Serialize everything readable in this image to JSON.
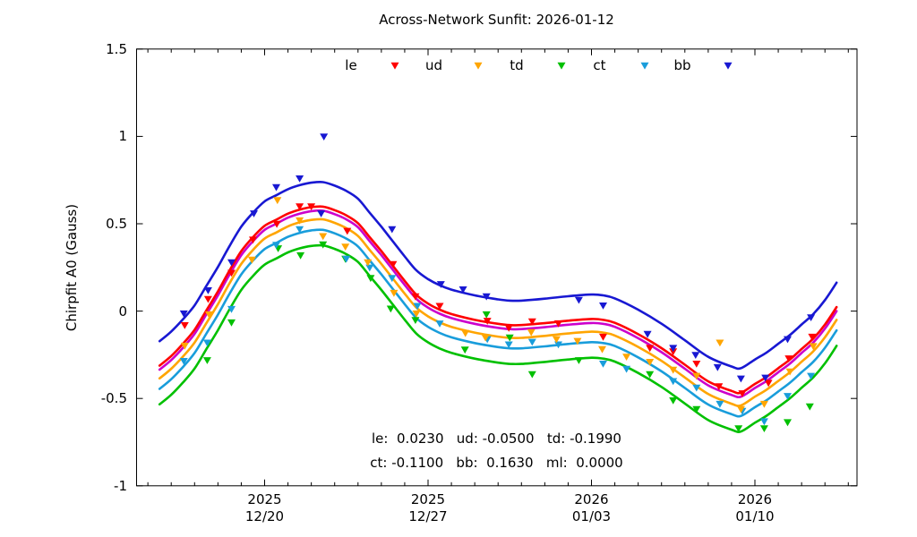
{
  "title": "Across-Network Sunfit: 2026-01-12",
  "axes": {
    "ylabel": "Chirpfit A0 (Gauss)",
    "y_ticks": [
      "1.5",
      "1",
      "0.5",
      "0",
      "-0.5",
      "-1"
    ],
    "y_tick_values": [
      1.5,
      1.0,
      0.5,
      0.0,
      -0.5,
      -1.0
    ],
    "x_major_ticks": [
      {
        "day": 0,
        "year": "2025",
        "date": "12/20"
      },
      {
        "day": 7,
        "year": "2025",
        "date": "12/27"
      },
      {
        "day": 14,
        "year": "2026",
        "date": "01/03"
      },
      {
        "day": 21,
        "year": "2026",
        "date": "01/10"
      }
    ],
    "x_minor_tick_first_day": -5,
    "x_minor_tick_last_day": 25
  },
  "legend": {
    "entries": [
      "le",
      "ud",
      "td",
      "ct",
      "bb"
    ]
  },
  "annotation": {
    "line1": "le:  0.0230   ud: -0.0500   td: -0.1990",
    "line2": "ct: -0.1100   bb:  0.1630   ml:  0.0000"
  },
  "chart_data": {
    "type": "scatter",
    "has_fit_lines": true,
    "title": "Across-Network Sunfit: 2026-01-12",
    "xlabel": "",
    "ylabel": "Chirpfit A0 (Gauss)",
    "ylim": [
      -1.0,
      1.5
    ],
    "x_unit": "days relative to 2025-12-20 (tick labels show dates)",
    "x_range_days": [
      -5.5,
      25.4
    ],
    "grid": false,
    "legend_position": "top-center-inside",
    "base_curve_days_values": [
      [
        -4.5,
        -0.335
      ],
      [
        -4,
        -0.28
      ],
      [
        -3.5,
        -0.21
      ],
      [
        -3,
        -0.13
      ],
      [
        -2.5,
        -0.02
      ],
      [
        -2,
        0.09
      ],
      [
        -1.5,
        0.21
      ],
      [
        -1,
        0.32
      ],
      [
        -0.5,
        0.4
      ],
      [
        0,
        0.465
      ],
      [
        0.5,
        0.5
      ],
      [
        1,
        0.535
      ],
      [
        1.5,
        0.558
      ],
      [
        2,
        0.572
      ],
      [
        2.5,
        0.575
      ],
      [
        3,
        0.555
      ],
      [
        3.5,
        0.525
      ],
      [
        4,
        0.48
      ],
      [
        4.5,
        0.4
      ],
      [
        5,
        0.32
      ],
      [
        5.5,
        0.235
      ],
      [
        6,
        0.15
      ],
      [
        6.5,
        0.07
      ],
      [
        7,
        0.02
      ],
      [
        7.5,
        -0.015
      ],
      [
        8,
        -0.04
      ],
      [
        9,
        -0.073
      ],
      [
        10,
        -0.096
      ],
      [
        10.5,
        -0.103
      ],
      [
        11,
        -0.103
      ],
      [
        12,
        -0.092
      ],
      [
        13,
        -0.078
      ],
      [
        14,
        -0.068
      ],
      [
        14.5,
        -0.073
      ],
      [
        15,
        -0.09
      ],
      [
        16,
        -0.155
      ],
      [
        17,
        -0.235
      ],
      [
        18,
        -0.33
      ],
      [
        19,
        -0.425
      ],
      [
        20,
        -0.48
      ],
      [
        20.4,
        -0.49
      ],
      [
        21,
        -0.44
      ],
      [
        21.5,
        -0.4
      ],
      [
        22,
        -0.35
      ],
      [
        22.5,
        -0.3
      ],
      [
        23,
        -0.24
      ],
      [
        23.5,
        -0.18
      ],
      [
        24,
        -0.1
      ],
      [
        24.5,
        0.0
      ]
    ],
    "series": [
      {
        "name": "le",
        "color": "#ff0000",
        "fit_offset": 0.023,
        "marker": "triangle-down",
        "points": [
          [
            -3.42,
            -0.08
          ],
          [
            -2.42,
            0.07
          ],
          [
            -1.42,
            0.22
          ],
          [
            -0.5,
            0.41
          ],
          [
            0.52,
            0.5
          ],
          [
            1.5,
            0.6
          ],
          [
            2.0,
            0.6
          ],
          [
            3.54,
            0.46
          ],
          [
            5.5,
            0.27
          ],
          [
            6.46,
            0.085
          ],
          [
            7.5,
            0.03
          ],
          [
            9.54,
            -0.055
          ],
          [
            10.46,
            -0.095
          ],
          [
            11.46,
            -0.058
          ],
          [
            12.58,
            -0.069
          ],
          [
            14.5,
            -0.146
          ],
          [
            16.5,
            -0.21
          ],
          [
            17.5,
            -0.23
          ],
          [
            18.5,
            -0.3
          ],
          [
            19.46,
            -0.43
          ],
          [
            20.46,
            -0.47
          ],
          [
            21.58,
            -0.41
          ],
          [
            22.45,
            -0.27
          ],
          [
            23.45,
            -0.146
          ]
        ]
      },
      {
        "name": "ud",
        "color": "#ffa500",
        "fit_offset": -0.05,
        "marker": "triangle-down",
        "points": [
          [
            -3.42,
            -0.197
          ],
          [
            -2.38,
            -0.018
          ],
          [
            -0.54,
            0.295
          ],
          [
            0.55,
            0.636
          ],
          [
            1.5,
            0.52
          ],
          [
            2.5,
            0.43
          ],
          [
            3.46,
            0.37
          ],
          [
            4.42,
            0.28
          ],
          [
            5.54,
            0.105
          ],
          [
            6.5,
            -0.013
          ],
          [
            8.6,
            -0.125
          ],
          [
            9.46,
            -0.15
          ],
          [
            11.42,
            -0.12
          ],
          [
            12.5,
            -0.16
          ],
          [
            13.4,
            -0.17
          ],
          [
            14.46,
            -0.217
          ],
          [
            15.5,
            -0.26
          ],
          [
            16.5,
            -0.29
          ],
          [
            17.5,
            -0.335
          ],
          [
            18.5,
            -0.37
          ],
          [
            19.5,
            -0.18
          ],
          [
            20.4,
            -0.56
          ],
          [
            21.4,
            -0.53
          ],
          [
            22.5,
            -0.345
          ],
          [
            23.5,
            -0.2
          ]
        ]
      },
      {
        "name": "td",
        "color": "#00c000",
        "fit_offset": -0.199,
        "marker": "triangle-down",
        "points": [
          [
            -2.46,
            -0.28
          ],
          [
            -1.42,
            -0.064
          ],
          [
            0.58,
            0.36
          ],
          [
            1.54,
            0.32
          ],
          [
            2.5,
            0.382
          ],
          [
            3.46,
            0.3
          ],
          [
            4.54,
            0.19
          ],
          [
            5.4,
            0.015
          ],
          [
            6.46,
            -0.05
          ],
          [
            8.58,
            -0.22
          ],
          [
            9.5,
            -0.018
          ],
          [
            10.5,
            -0.15
          ],
          [
            11.46,
            -0.36
          ],
          [
            13.46,
            -0.28
          ],
          [
            16.5,
            -0.36
          ],
          [
            17.5,
            -0.51
          ],
          [
            18.5,
            -0.56
          ],
          [
            20.3,
            -0.67
          ],
          [
            21.4,
            -0.67
          ],
          [
            22.4,
            -0.635
          ],
          [
            23.35,
            -0.545
          ]
        ]
      },
      {
        "name": "ct",
        "color": "#199ddb",
        "fit_offset": -0.11,
        "marker": "triangle-down",
        "points": [
          [
            -3.46,
            -0.285
          ],
          [
            -2.46,
            -0.18
          ],
          [
            -1.42,
            0.013
          ],
          [
            0.5,
            0.38
          ],
          [
            1.5,
            0.47
          ],
          [
            3.5,
            0.3
          ],
          [
            4.5,
            0.25
          ],
          [
            5.46,
            0.19
          ],
          [
            6.54,
            0.03
          ],
          [
            7.5,
            -0.07
          ],
          [
            9.54,
            -0.16
          ],
          [
            10.46,
            -0.19
          ],
          [
            11.46,
            -0.175
          ],
          [
            12.58,
            -0.19
          ],
          [
            14.5,
            -0.3
          ],
          [
            15.5,
            -0.33
          ],
          [
            17.5,
            -0.4
          ],
          [
            18.5,
            -0.437
          ],
          [
            19.5,
            -0.53
          ],
          [
            20.46,
            -0.57
          ],
          [
            21.4,
            -0.63
          ],
          [
            22.4,
            -0.485
          ],
          [
            23.4,
            -0.37
          ]
        ]
      },
      {
        "name": "bb",
        "color": "#1818d2",
        "fit_offset": 0.163,
        "marker": "triangle-down",
        "points": [
          [
            -3.46,
            -0.013
          ],
          [
            -2.42,
            0.12
          ],
          [
            -1.42,
            0.28
          ],
          [
            -0.46,
            0.56
          ],
          [
            0.5,
            0.71
          ],
          [
            1.5,
            0.76
          ],
          [
            2.42,
            0.56
          ],
          [
            2.54,
            1.0
          ],
          [
            5.46,
            0.47
          ],
          [
            7.55,
            0.155
          ],
          [
            8.5,
            0.125
          ],
          [
            9.5,
            0.085
          ],
          [
            13.46,
            0.065
          ],
          [
            14.5,
            0.033
          ],
          [
            16.4,
            -0.13
          ],
          [
            17.5,
            -0.21
          ],
          [
            18.46,
            -0.25
          ],
          [
            19.4,
            -0.32
          ],
          [
            20.4,
            -0.385
          ],
          [
            21.45,
            -0.38
          ],
          [
            22.4,
            -0.16
          ],
          [
            23.4,
            -0.035
          ]
        ]
      },
      {
        "name": "ml",
        "color": "#cc00cc",
        "fit_offset": 0.0,
        "marker": "none",
        "points": []
      }
    ]
  }
}
